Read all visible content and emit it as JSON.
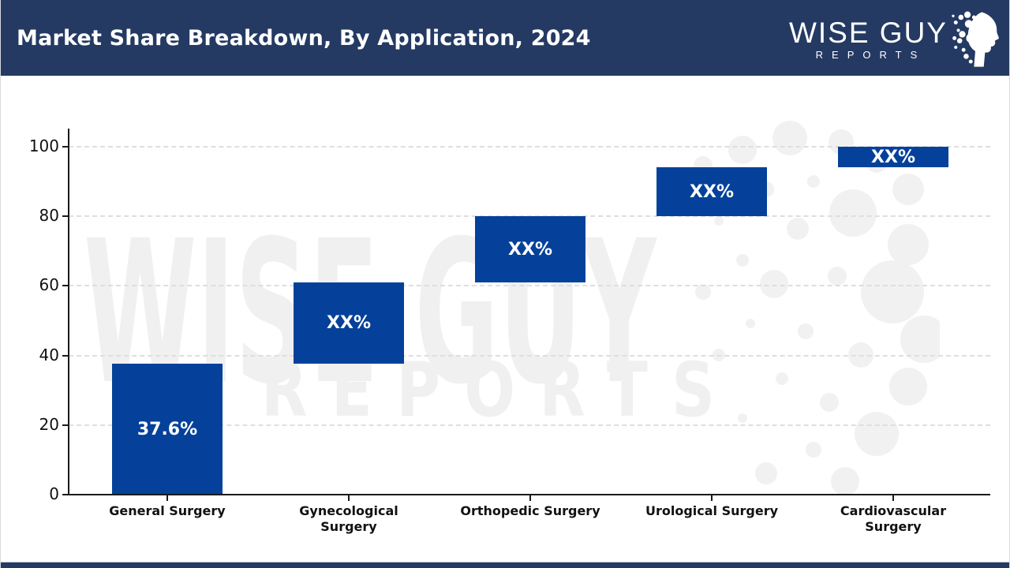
{
  "header": {
    "title": "Market Share Breakdown, By Application, 2024",
    "logo_line1": "WISE GUY",
    "logo_line2": "REPORTS",
    "bg_color": "#243a63"
  },
  "watermark": {
    "line1": "WISE GUY",
    "line2": "REPORTS"
  },
  "chart_data": {
    "type": "bar",
    "subtype": "waterfall",
    "title": "Market Share Breakdown, By Application, 2024",
    "xlabel": "",
    "ylabel": "",
    "ylim": [
      0,
      105
    ],
    "yticks": [
      0,
      20,
      40,
      60,
      80,
      100
    ],
    "grid": "horizontal-dashed",
    "legend": "none",
    "bar_color": "#05419a",
    "categories": [
      "General Surgery",
      "Gynecological\nSurgery",
      "Orthopedic Surgery",
      "Urological Surgery",
      "Cardiovascular\nSurgery"
    ],
    "segments": [
      {
        "category": "General Surgery",
        "start": 0,
        "end": 37.6,
        "label": "37.6%"
      },
      {
        "category": "Gynecological Surgery",
        "start": 37.6,
        "end": 61,
        "label": "XX%"
      },
      {
        "category": "Orthopedic Surgery",
        "start": 61,
        "end": 80,
        "label": "XX%"
      },
      {
        "category": "Urological Surgery",
        "start": 80,
        "end": 94,
        "label": "XX%"
      },
      {
        "category": "Cardiovascular Surgery",
        "start": 94,
        "end": 100,
        "label": "XX%"
      }
    ]
  }
}
